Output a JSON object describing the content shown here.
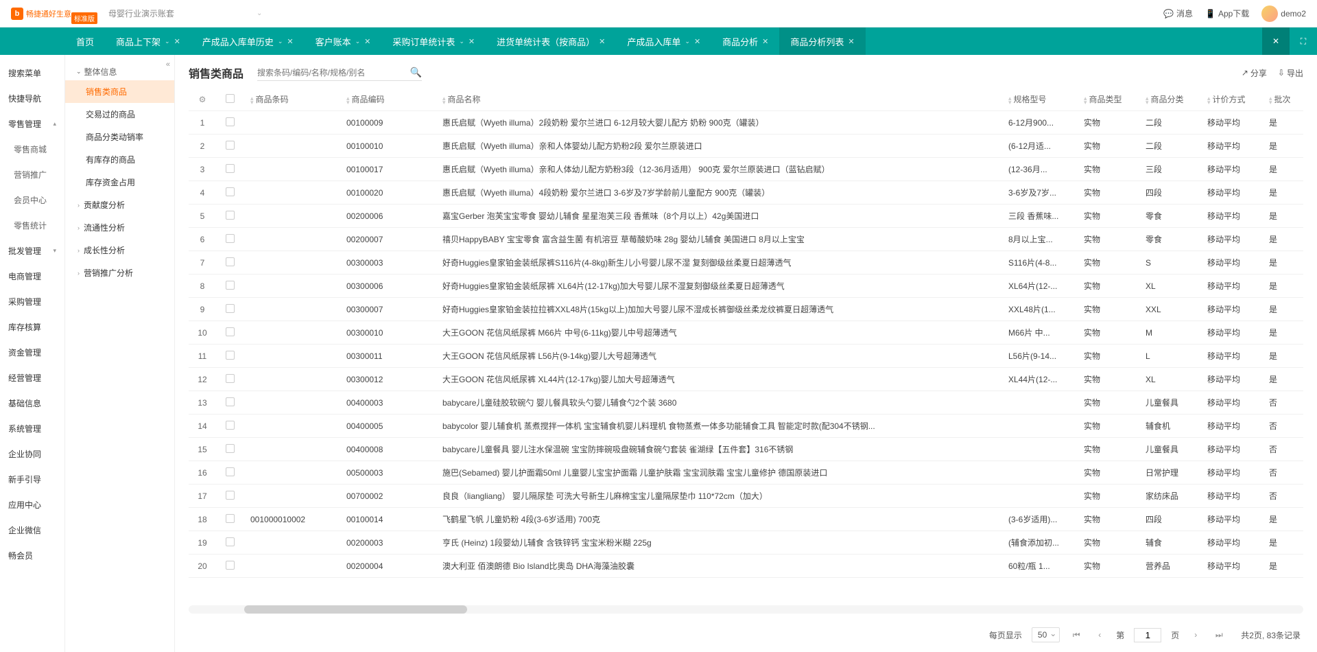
{
  "topbar": {
    "logo_text": "畅捷通好生意",
    "logo_badge": "标准版",
    "account_name": "母婴行业演示账套",
    "messages": "消息",
    "app_download": "App下载",
    "username": "demo2"
  },
  "tabs": [
    {
      "label": "首页",
      "closable": false,
      "active": false,
      "dropdown": false
    },
    {
      "label": "商品上下架",
      "closable": true,
      "active": false,
      "dropdown": true
    },
    {
      "label": "产成品入库单历史",
      "closable": true,
      "active": false,
      "dropdown": true
    },
    {
      "label": "客户账本",
      "closable": true,
      "active": false,
      "dropdown": true
    },
    {
      "label": "采购订单统计表",
      "closable": true,
      "active": false,
      "dropdown": true
    },
    {
      "label": "进货单统计表（按商品）",
      "closable": true,
      "active": false,
      "dropdown": false
    },
    {
      "label": "产成品入库单",
      "closable": true,
      "active": false,
      "dropdown": true
    },
    {
      "label": "商品分析",
      "closable": true,
      "active": false,
      "dropdown": false
    },
    {
      "label": "商品分析列表",
      "closable": true,
      "active": true,
      "dropdown": false
    }
  ],
  "sidebar1": [
    {
      "label": "搜索菜单",
      "expandable": false
    },
    {
      "label": "快捷导航",
      "expandable": false
    },
    {
      "label": "零售管理",
      "expandable": true,
      "expanded": true,
      "children": [
        "零售商城",
        "营销推广",
        "会员中心",
        "零售统计"
      ]
    },
    {
      "label": "批发管理",
      "expandable": true,
      "expanded": false
    },
    {
      "label": "电商管理",
      "expandable": false
    },
    {
      "label": "采购管理",
      "expandable": false
    },
    {
      "label": "库存核算",
      "expandable": false
    },
    {
      "label": "资金管理",
      "expandable": false
    },
    {
      "label": "经营管理",
      "expandable": false
    },
    {
      "label": "基础信息",
      "expandable": false
    },
    {
      "label": "系统管理",
      "expandable": false
    },
    {
      "label": "企业协同",
      "expandable": false
    },
    {
      "label": "新手引导",
      "expandable": false
    },
    {
      "label": "应用中心",
      "expandable": false
    },
    {
      "label": "企业微信",
      "expandable": false
    },
    {
      "label": "畅会员",
      "expandable": false
    }
  ],
  "sidebar2": {
    "group_title": "整体信息",
    "items": [
      {
        "label": "销售类商品",
        "active": true,
        "arrow": false
      },
      {
        "label": "交易过的商品",
        "active": false,
        "arrow": false
      },
      {
        "label": "商品分类动销率",
        "active": false,
        "arrow": false
      },
      {
        "label": "有库存的商品",
        "active": false,
        "arrow": false
      },
      {
        "label": "库存资金占用",
        "active": false,
        "arrow": false
      },
      {
        "label": "贡献度分析",
        "active": false,
        "arrow": true
      },
      {
        "label": "流通性分析",
        "active": false,
        "arrow": true
      },
      {
        "label": "成长性分析",
        "active": false,
        "arrow": true
      },
      {
        "label": "营销推广分析",
        "active": false,
        "arrow": true
      }
    ]
  },
  "page": {
    "title": "销售类商品",
    "search_placeholder": "搜索条码/编码/名称/规格/别名",
    "share": "分享",
    "export": "导出"
  },
  "columns": [
    "商品条码",
    "商品编码",
    "商品名称",
    "规格型号",
    "商品类型",
    "商品分类",
    "计价方式",
    "批次"
  ],
  "rows": [
    {
      "n": "1",
      "barcode": "",
      "code": "00100009",
      "name": "惠氏启赋（Wyeth illuma）2段奶粉 爱尔兰进口 6-12月较大婴儿配方 奶粉 900克（罐装）",
      "spec": "6-12月900...",
      "type": "实物",
      "cat": "二段",
      "price": "移动平均",
      "batch": "是"
    },
    {
      "n": "2",
      "barcode": "",
      "code": "00100010",
      "name": "惠氏启赋（Wyeth illuma）亲和人体婴幼儿配方奶粉2段 爱尔兰原装进口",
      "spec": "(6-12月适...",
      "type": "实物",
      "cat": "二段",
      "price": "移动平均",
      "batch": "是"
    },
    {
      "n": "3",
      "barcode": "",
      "code": "00100017",
      "name": "惠氏启赋（Wyeth illuma）亲和人体幼儿配方奶粉3段（12-36月适用） 900克 爱尔兰原装进口（蓝钻启赋）",
      "spec": "(12-36月...",
      "type": "实物",
      "cat": "三段",
      "price": "移动平均",
      "batch": "是"
    },
    {
      "n": "4",
      "barcode": "",
      "code": "00100020",
      "name": "惠氏启赋（Wyeth illuma）4段奶粉 爱尔兰进口 3-6岁及7岁学龄前儿童配方 900克（罐装）",
      "spec": "3-6岁及7岁...",
      "type": "实物",
      "cat": "四段",
      "price": "移动平均",
      "batch": "是"
    },
    {
      "n": "5",
      "barcode": "",
      "code": "00200006",
      "name": "嘉宝Gerber 泡芙宝宝零食 婴幼儿辅食 星星泡芙三段 香蕉味（8个月以上）42g美国进口",
      "spec": "三段 香蕉味...",
      "type": "实物",
      "cat": "零食",
      "price": "移动平均",
      "batch": "是"
    },
    {
      "n": "6",
      "barcode": "",
      "code": "00200007",
      "name": "禧贝HappyBABY 宝宝零食 富含益生菌 有机溶豆 草莓酸奶味 28g 婴幼儿辅食 美国进口 8月以上宝宝",
      "spec": "8月以上宝...",
      "type": "实物",
      "cat": "零食",
      "price": "移动平均",
      "batch": "是"
    },
    {
      "n": "7",
      "barcode": "",
      "code": "00300003",
      "name": "好奇Huggies皇家铂金装纸尿裤S116片(4-8kg)新生儿小号婴儿尿不湿 复刻御级丝柔夏日超薄透气",
      "spec": "S116片(4-8...",
      "type": "实物",
      "cat": "S",
      "price": "移动平均",
      "batch": "是"
    },
    {
      "n": "8",
      "barcode": "",
      "code": "00300006",
      "name": "好奇Huggies皇家铂金装纸尿裤 XL64片(12-17kg)加大号婴儿尿不湿复刻御级丝柔夏日超薄透气",
      "spec": "XL64片(12-...",
      "type": "实物",
      "cat": "XL",
      "price": "移动平均",
      "batch": "是"
    },
    {
      "n": "9",
      "barcode": "",
      "code": "00300007",
      "name": "好奇Huggies皇家铂金装拉拉裤XXL48片(15kg以上)加加大号婴儿尿不湿成长裤御级丝柔龙纹裤夏日超薄透气",
      "spec": "XXL48片(1...",
      "type": "实物",
      "cat": "XXL",
      "price": "移动平均",
      "batch": "是"
    },
    {
      "n": "10",
      "barcode": "",
      "code": "00300010",
      "name": "大王GOON 花信风纸尿裤 M66片 中号(6-11kg)婴儿中号超薄透气",
      "spec": "M66片 中...",
      "type": "实物",
      "cat": "M",
      "price": "移动平均",
      "batch": "是"
    },
    {
      "n": "11",
      "barcode": "",
      "code": "00300011",
      "name": "大王GOON 花信风纸尿裤 L56片(9-14kg)婴儿大号超薄透气",
      "spec": "L56片(9-14...",
      "type": "实物",
      "cat": "L",
      "price": "移动平均",
      "batch": "是"
    },
    {
      "n": "12",
      "barcode": "",
      "code": "00300012",
      "name": "大王GOON 花信风纸尿裤 XL44片(12-17kg)婴儿加大号超薄透气",
      "spec": "XL44片(12-...",
      "type": "实物",
      "cat": "XL",
      "price": "移动平均",
      "batch": "是"
    },
    {
      "n": "13",
      "barcode": "",
      "code": "00400003",
      "name": "babycare儿童硅胶软碗勺 婴儿餐具软头勺婴儿辅食勺2个装 3680",
      "spec": "",
      "type": "实物",
      "cat": "儿童餐具",
      "price": "移动平均",
      "batch": "否"
    },
    {
      "n": "14",
      "barcode": "",
      "code": "00400005",
      "name": "babycolor 婴儿辅食机 蒸煮搅拌一体机 宝宝辅食机婴儿料理机 食物蒸煮一体多功能辅食工具 智能定时款(配304不锈钢...",
      "spec": "",
      "type": "实物",
      "cat": "辅食机",
      "price": "移动平均",
      "batch": "否"
    },
    {
      "n": "15",
      "barcode": "",
      "code": "00400008",
      "name": "babycare儿童餐具 婴儿注水保温碗 宝宝防摔碗吸盘碗辅食碗勺套装 雀湖绿【五件套】316不锈钢",
      "spec": "",
      "type": "实物",
      "cat": "儿童餐具",
      "price": "移动平均",
      "batch": "否"
    },
    {
      "n": "16",
      "barcode": "",
      "code": "00500003",
      "name": "施巴(Sebamed) 婴儿护面霜50ml 儿童婴儿宝宝护面霜 儿童护肤霜 宝宝润肤霜 宝宝儿童修护 德国原装进口",
      "spec": "",
      "type": "实物",
      "cat": "日常护理",
      "price": "移动平均",
      "batch": "否"
    },
    {
      "n": "17",
      "barcode": "",
      "code": "00700002",
      "name": "良良（liangliang） 婴儿隔尿垫 可洗大号新生儿麻棉宝宝儿童隔尿垫巾 110*72cm（加大）",
      "spec": "",
      "type": "实物",
      "cat": "家纺床品",
      "price": "移动平均",
      "batch": "否"
    },
    {
      "n": "18",
      "barcode": "001000010002",
      "code": "00100014",
      "name": "飞鹤星飞帆 儿童奶粉 4段(3-6岁适用) 700克",
      "spec": "(3-6岁适用)...",
      "type": "实物",
      "cat": "四段",
      "price": "移动平均",
      "batch": "是"
    },
    {
      "n": "19",
      "barcode": "",
      "code": "00200003",
      "name": "亨氏 (Heinz) 1段婴幼儿辅食 含铁锌钙 宝宝米粉米糊 225g",
      "spec": "(辅食添加初...",
      "type": "实物",
      "cat": "辅食",
      "price": "移动平均",
      "batch": "是"
    },
    {
      "n": "20",
      "barcode": "",
      "code": "00200004",
      "name": "澳大利亚 佰澳朗德 Bio Island比奥岛 DHA海藻油胶囊",
      "spec": "60粒/瓶 1...",
      "type": "实物",
      "cat": "营养品",
      "price": "移动平均",
      "batch": "是"
    }
  ],
  "footer": {
    "page_size_label": "每页显示",
    "page_size": "50",
    "page_label_prefix": "第",
    "page_num": "1",
    "page_label_suffix": "页",
    "summary": "共2页, 83条记录"
  },
  "colors": {
    "primary": "#00a39a",
    "primary_dark": "#009087",
    "accent": "#ff6a00",
    "active_bg": "#ffe9d6"
  }
}
